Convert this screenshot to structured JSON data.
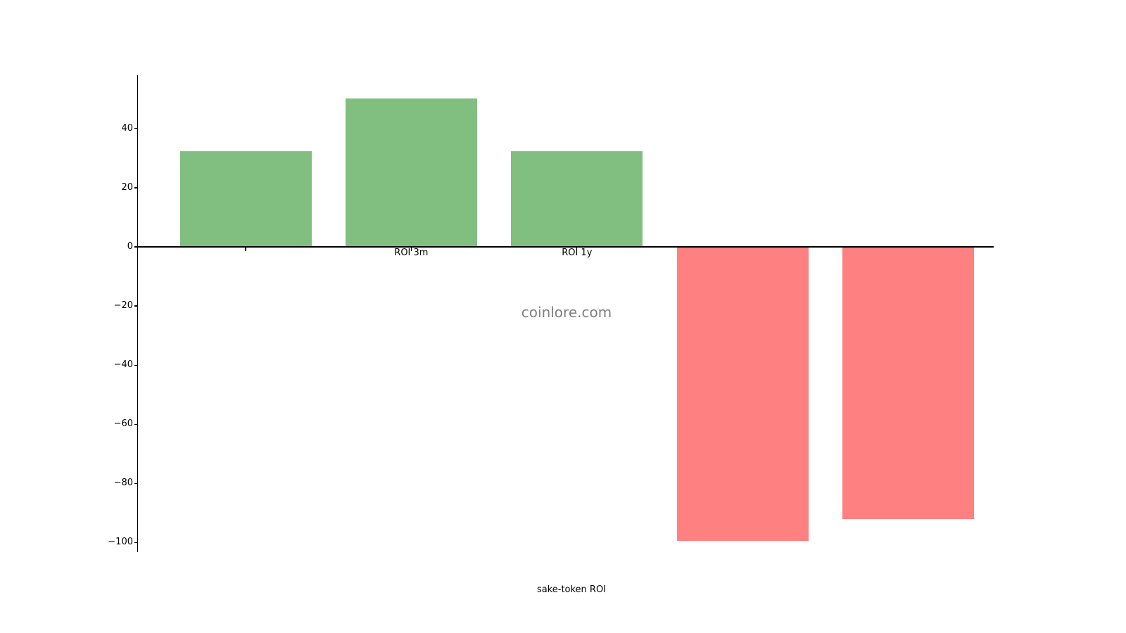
{
  "watermark": {
    "text": "coinlore.com",
    "color": "#7f7f7f"
  },
  "chart_data": {
    "type": "bar",
    "title": "",
    "xlabel": "sake-token ROI",
    "ylabel": "",
    "categories": [
      "",
      "ROI 3m",
      "ROI 1y",
      "",
      ""
    ],
    "values": [
      32.4,
      50.3,
      32.4,
      -99.4,
      -92.1
    ],
    "bar_colors": [
      "#80bf80",
      "#80bf80",
      "#80bf80",
      "#ff8080",
      "#ff8080"
    ],
    "positive_color": "#80bf80",
    "negative_color": "#ff8080",
    "ytick_values": [
      40,
      20,
      0,
      -20,
      -40,
      -60,
      -80,
      -100
    ],
    "ytick_labels": [
      "40",
      "20",
      "0",
      "−20",
      "−40",
      "−60",
      "−80",
      "−100"
    ],
    "ylim": [
      -103,
      58
    ],
    "grid": false,
    "legend": null,
    "axis_color": "#000000",
    "text_color": "#000000"
  }
}
